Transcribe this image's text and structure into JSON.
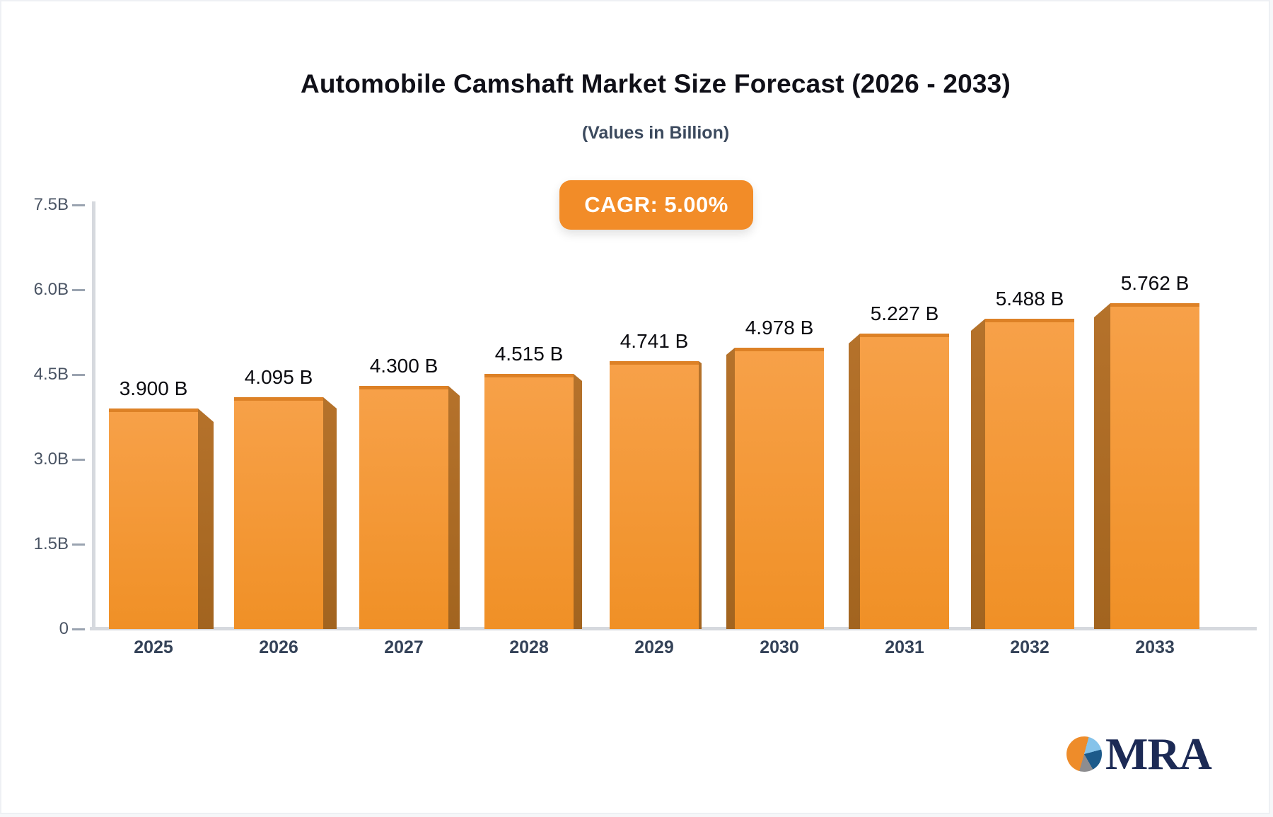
{
  "header": {
    "title": "Automobile Camshaft Market Size Forecast (2026 - 2033)",
    "subtitle": "(Values in Billion)"
  },
  "badge": {
    "label": "CAGR: 5.00%",
    "bg_color": "#F28C28",
    "text_color": "#FFFFFF"
  },
  "chart_data": {
    "type": "bar",
    "title": "Automobile Camshaft Market Size Forecast (2026 - 2033)",
    "subtitle": "(Values in Billion)",
    "xlabel": "",
    "ylabel": "",
    "categories": [
      "2025",
      "2026",
      "2027",
      "2028",
      "2029",
      "2030",
      "2031",
      "2032",
      "2033"
    ],
    "values": [
      3.9,
      4.095,
      4.3,
      4.515,
      4.741,
      4.978,
      5.227,
      5.488,
      5.762
    ],
    "value_labels": [
      "3.900 B",
      "4.095 B",
      "4.300 B",
      "4.515 B",
      "4.741 B",
      "4.978 B",
      "5.227 B",
      "5.488 B",
      "5.762 B"
    ],
    "y_tick_values": [
      7.5,
      6.0,
      4.5,
      3.0,
      1.5,
      0
    ],
    "y_tick_labels": [
      "7.5B",
      "6.0B",
      "4.5B",
      "3.0B",
      "1.5B",
      "0"
    ],
    "ylim": [
      0,
      7.5
    ],
    "grid": false,
    "legend": "none",
    "annotation": "CAGR: 5.00%",
    "colors": {
      "bar_face_top": "#F7A149",
      "bar_face_bottom": "#F09026",
      "bar_top_strip": "#DD8126",
      "bar_side_top": "#B5722B",
      "bar_side_bottom": "#A2641F",
      "axis_line": "#D6D9DE",
      "tick_mark": "#9AA3B0",
      "tick_text": "#4A5464",
      "category_text": "#344258",
      "value_text": "#0B0B10"
    }
  },
  "logo": {
    "text": "MRA",
    "text_color": "#1C2A55",
    "pie_orange": "#EE8C2A",
    "pie_lightblue": "#85C3EA",
    "pie_darkblue": "#1C5A8A",
    "pie_gray": "#8D8D90"
  }
}
